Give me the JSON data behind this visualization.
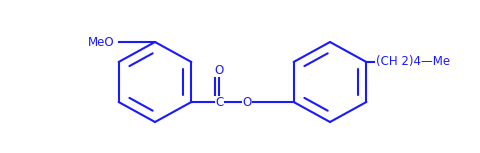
{
  "bg_color": "#ffffff",
  "line_color": "#1a1aff",
  "text_color": "#1a1aff",
  "line_width": 1.5,
  "font_size": 8.5,
  "figsize": [
    4.81,
    1.53
  ],
  "dpi": 100,
  "MeO_label": "MeO",
  "C_label": "C",
  "O_label": "O",
  "carbonyl_O": "O",
  "chain_label": "(CH 2)4—Me"
}
